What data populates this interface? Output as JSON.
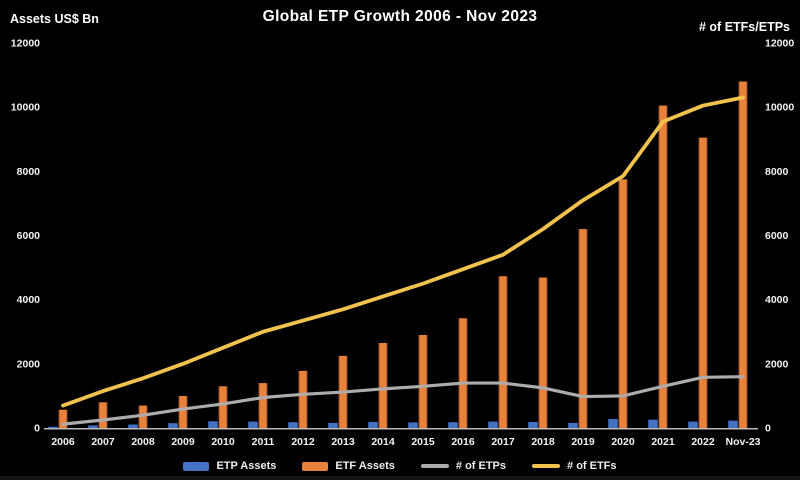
{
  "header": {
    "title": "Global ETP Growth 2006 - Nov 2023"
  },
  "axes": {
    "left_title": "Assets US$ Bn",
    "right_title": "# of ETFs/ETPs",
    "y_ticks": [
      0,
      2000,
      4000,
      6000,
      8000,
      10000,
      12000
    ]
  },
  "colors": {
    "background": "#000000",
    "text": "#FFFFFF",
    "etp_assets": "#4472C4",
    "etf_assets": "#E8813C",
    "etps_line": "#ACACAC",
    "etfs_line": "#F2C24E",
    "axis_line": "#B7B7B7"
  },
  "legend": [
    {
      "label": "ETP Assets",
      "type": "bar",
      "color_key": "etp_assets"
    },
    {
      "label": "ETF Assets",
      "type": "bar",
      "color_key": "etf_assets"
    },
    {
      "label": "# of ETPs",
      "type": "line",
      "color_key": "etps_line"
    },
    {
      "label": "# of ETFs",
      "type": "line",
      "color_key": "etfs_line"
    }
  ],
  "chart_data": {
    "type": "bar",
    "subtype": "grouped-bars-with-two-lines",
    "title": "Global ETP Growth 2006 - Nov 2023",
    "categories": [
      "2006",
      "2007",
      "2008",
      "2009",
      "2010",
      "2011",
      "2012",
      "2013",
      "2014",
      "2015",
      "2016",
      "2017",
      "2018",
      "2019",
      "2020",
      "2021",
      "2022",
      "Nov-23"
    ],
    "series": [
      {
        "name": "ETP Assets",
        "type": "bar",
        "axis": "left",
        "values": [
          40,
          80,
          110,
          150,
          210,
          200,
          180,
          160,
          190,
          175,
          180,
          200,
          190,
          160,
          280,
          260,
          200,
          230
        ]
      },
      {
        "name": "ETF Assets",
        "type": "bar",
        "axis": "left",
        "values": [
          570,
          800,
          700,
          1000,
          1300,
          1400,
          1780,
          2250,
          2650,
          2900,
          3420,
          4730,
          4690,
          6200,
          7750,
          10050,
          9050,
          10800
        ]
      },
      {
        "name": "# of ETPs",
        "type": "line",
        "axis": "right",
        "values": [
          120,
          250,
          400,
          590,
          750,
          950,
          1050,
          1120,
          1220,
          1300,
          1400,
          1400,
          1250,
          980,
          1000,
          1300,
          1580,
          1600
        ]
      },
      {
        "name": "# of ETFs",
        "type": "line",
        "axis": "right",
        "values": [
          700,
          1150,
          1550,
          2000,
          2500,
          3000,
          3350,
          3700,
          4100,
          4500,
          4950,
          5400,
          6200,
          7100,
          7850,
          9550,
          10050,
          10300
        ]
      }
    ],
    "ylabel_left": "Assets US$ Bn",
    "ylabel_right": "# of ETFs/ETPs",
    "ylim": [
      0,
      12000
    ],
    "grid": false,
    "legend_position": "bottom"
  }
}
